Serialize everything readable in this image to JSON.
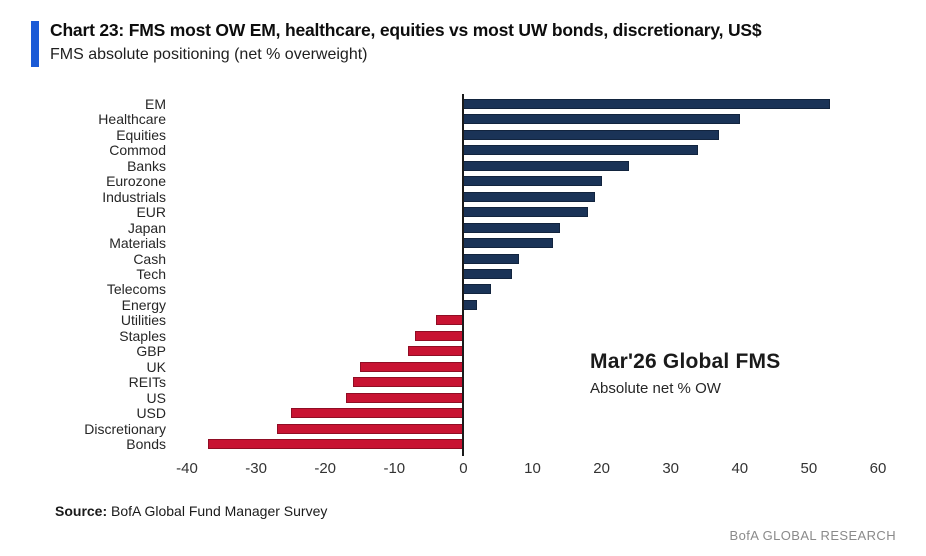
{
  "header": {
    "title": "Chart 23: FMS most OW EM, healthcare, equities vs most UW bonds, discretionary, US$",
    "subtitle": "FMS absolute positioning (net % overweight)"
  },
  "chart_data": {
    "type": "bar",
    "orientation": "horizontal",
    "title": "FMS absolute positioning (net % overweight)",
    "categories": [
      "EM",
      "Healthcare",
      "Equities",
      "Commod",
      "Banks",
      "Eurozone",
      "Industrials",
      "EUR",
      "Japan",
      "Materials",
      "Cash",
      "Tech",
      "Telecoms",
      "Energy",
      "Utilities",
      "Staples",
      "GBP",
      "UK",
      "REITs",
      "US",
      "USD",
      "Discretionary",
      "Bonds"
    ],
    "values": [
      53,
      40,
      37,
      34,
      24,
      20,
      19,
      18,
      14,
      13,
      8,
      7,
      4,
      2,
      -4,
      -7,
      -8,
      -15,
      -16,
      -17,
      -25,
      -27,
      -37
    ],
    "xlabel": "net % overweight",
    "ylabel": "",
    "xlim": [
      -40,
      60
    ],
    "xtick_labels": [
      "-40",
      "-30",
      "-20",
      "-10",
      "0",
      "10",
      "20",
      "30",
      "40",
      "50",
      "60"
    ],
    "xtick_values": [
      -40,
      -30,
      -20,
      -10,
      0,
      10,
      20,
      30,
      40,
      50,
      60
    ],
    "grid": false,
    "legend": "none",
    "annotation": {
      "line1": "Mar'26 Global FMS",
      "line2": "Absolute net % OW"
    }
  },
  "colors": {
    "positive_bar": "#1a3357",
    "negative_bar": "#c81332",
    "accent": "#1a5ad6",
    "axis_line": "#1a1a1a",
    "brand_text": "#8a8a8a"
  },
  "footer": {
    "source_label": "Source:",
    "source_text": " BofA Global Fund Manager Survey",
    "brand": "BofA GLOBAL RESEARCH"
  }
}
